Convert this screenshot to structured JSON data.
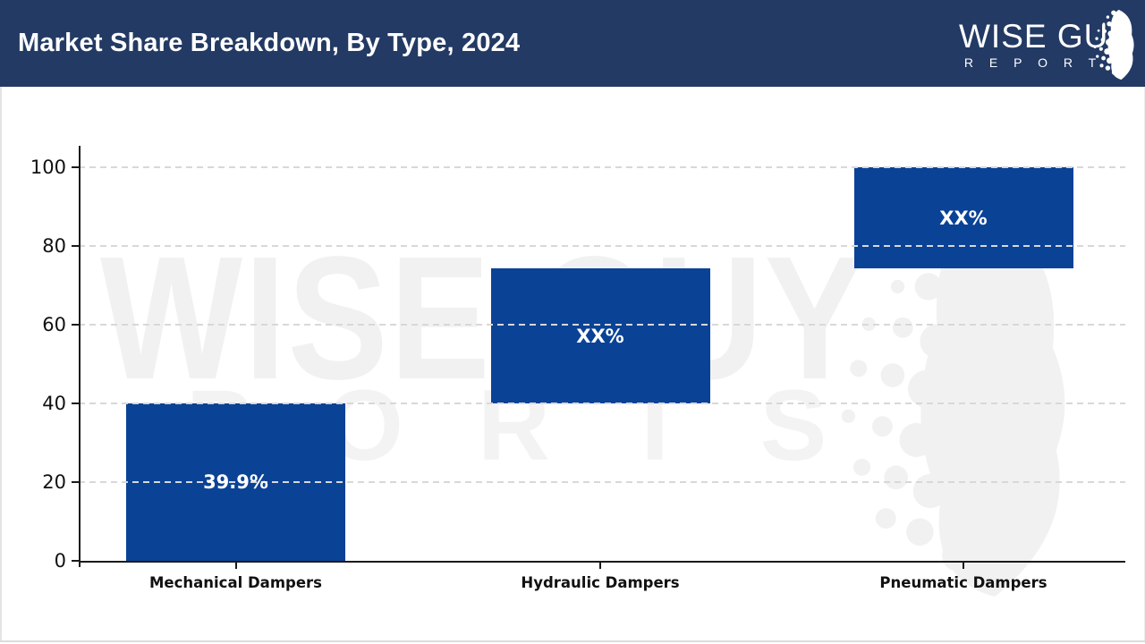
{
  "header": {
    "title": "Market Share Breakdown, By Type, 2024",
    "logo_line1": "WISE GUY",
    "logo_line2": "R E P O R T S"
  },
  "watermark": {
    "line1": "WISE GUY",
    "line2": "P O R T S"
  },
  "colors": {
    "header_bg": "#233A64",
    "bar_fill": "#0A4296",
    "bar_label": "#FFFFFF",
    "axis": "#1A1A1A",
    "tick_label": "#111111",
    "gridline_dashed": "#D8D8D8",
    "watermark": "#F1F1F1",
    "frame_line": "#DCDCDC"
  },
  "chart_data": {
    "type": "bar",
    "subtype": "floating-waterfall-segments",
    "title": "Market Share Breakdown, By Type, 2024",
    "categories": [
      "Mechanical Dampers",
      "Hydraulic Dampers",
      "Pneumatic Dampers"
    ],
    "bars": [
      {
        "category": "Mechanical Dampers",
        "start": 0,
        "end": 39.9,
        "value": 39.9,
        "label": "39.9%"
      },
      {
        "category": "Hydraulic Dampers",
        "start": 39.9,
        "end": 74.3,
        "value": 34.4,
        "label": "XX%"
      },
      {
        "category": "Pneumatic Dampers",
        "start": 74.3,
        "end": 100,
        "value": 25.7,
        "label": "XX%"
      }
    ],
    "xlabel": "",
    "ylabel": "",
    "ylim": [
      0,
      105.5
    ],
    "yticks": [
      0,
      20,
      40,
      60,
      80,
      100
    ],
    "grid": "horizontal dashed lines drawn over bars",
    "legend": "none"
  }
}
